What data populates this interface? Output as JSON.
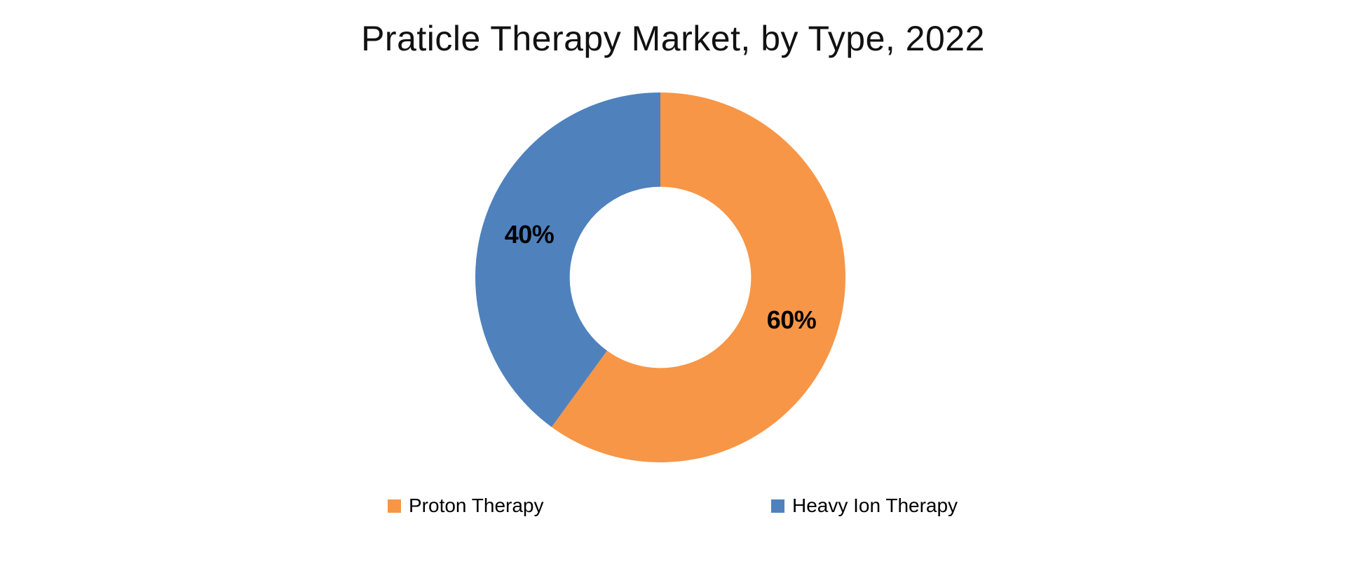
{
  "title": "Praticle Therapy Market, by Type, 2022",
  "chart_data": {
    "type": "pie",
    "subtype": "donut",
    "title": "Praticle Therapy Market, by Type, 2022",
    "categories": [
      "Proton Therapy",
      "Heavy Ion Therapy"
    ],
    "values": [
      60,
      40
    ],
    "unit": "%",
    "labels": [
      "60%",
      "40%"
    ],
    "colors": [
      "#F79646",
      "#4F81BD"
    ],
    "start_angle_deg": 0,
    "direction": "clockwise",
    "inner_radius_ratio": 0.49,
    "legend_position": "bottom",
    "data_labels": "inside",
    "label_text_color": "#000000",
    "background_color": "#FFFFFF"
  },
  "legend": {
    "items": [
      {
        "label": "Proton Therapy",
        "color": "#F79646"
      },
      {
        "label": "Heavy Ion Therapy",
        "color": "#4F81BD"
      }
    ]
  }
}
